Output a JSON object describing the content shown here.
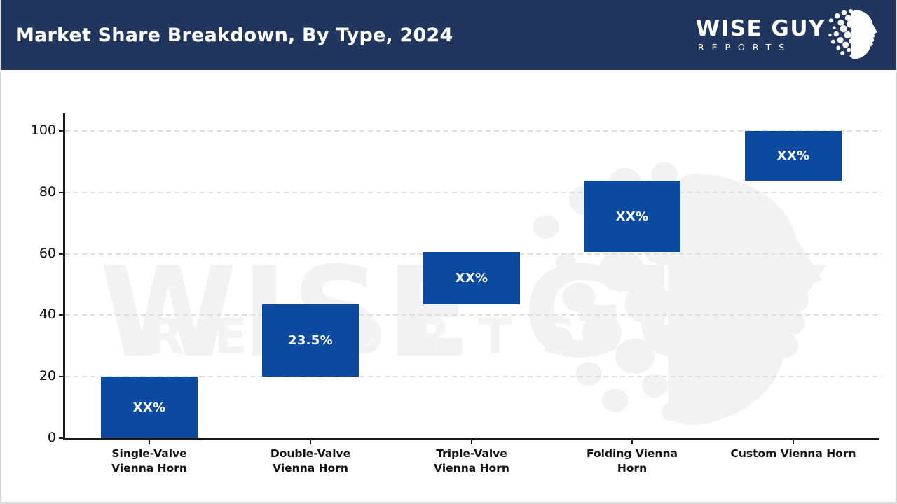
{
  "header": {
    "title": "Market Share Breakdown, By Type, 2024",
    "logo_line1": "WISE GUY",
    "logo_line2": "REPORTS"
  },
  "watermark": {
    "line1": "WISE GUY",
    "line2": "REPORTS"
  },
  "colors": {
    "header_bg": "#21365f",
    "bar": "#0b4a9e",
    "grid": "#dedede",
    "axis": "#1a1a1a",
    "bar_label_text": "#ffffff",
    "watermark": "#f2f2f2"
  },
  "chart_data": {
    "type": "bar",
    "subtype": "waterfall",
    "title": "Market Share Breakdown, By Type, 2024",
    "xlabel": "",
    "ylabel": "",
    "ylim": [
      0,
      100
    ],
    "yticks": [
      0,
      20,
      40,
      60,
      80,
      100
    ],
    "grid": "horizontal-dashed",
    "legend": "none",
    "categories": [
      "Single-Valve\nVienna Horn",
      "Double-Valve\nVienna Horn",
      "Triple-Valve\nVienna Horn",
      "Folding Vienna\nHorn",
      "Custom Vienna Horn"
    ],
    "segments": [
      {
        "category": "Single-Valve Vienna Horn",
        "start": 0,
        "end": 20,
        "value_label": "XX%"
      },
      {
        "category": "Double-Valve Vienna Horn",
        "start": 20,
        "end": 43.5,
        "value_label": "23.5%"
      },
      {
        "category": "Triple-Valve Vienna Horn",
        "start": 43.5,
        "end": 60.5,
        "value_label": "XX%"
      },
      {
        "category": "Folding Vienna Horn",
        "start": 60.5,
        "end": 83.8,
        "value_label": "XX%"
      },
      {
        "category": "Custom Vienna Horn",
        "start": 83.8,
        "end": 100,
        "value_label": "XX%"
      }
    ]
  }
}
